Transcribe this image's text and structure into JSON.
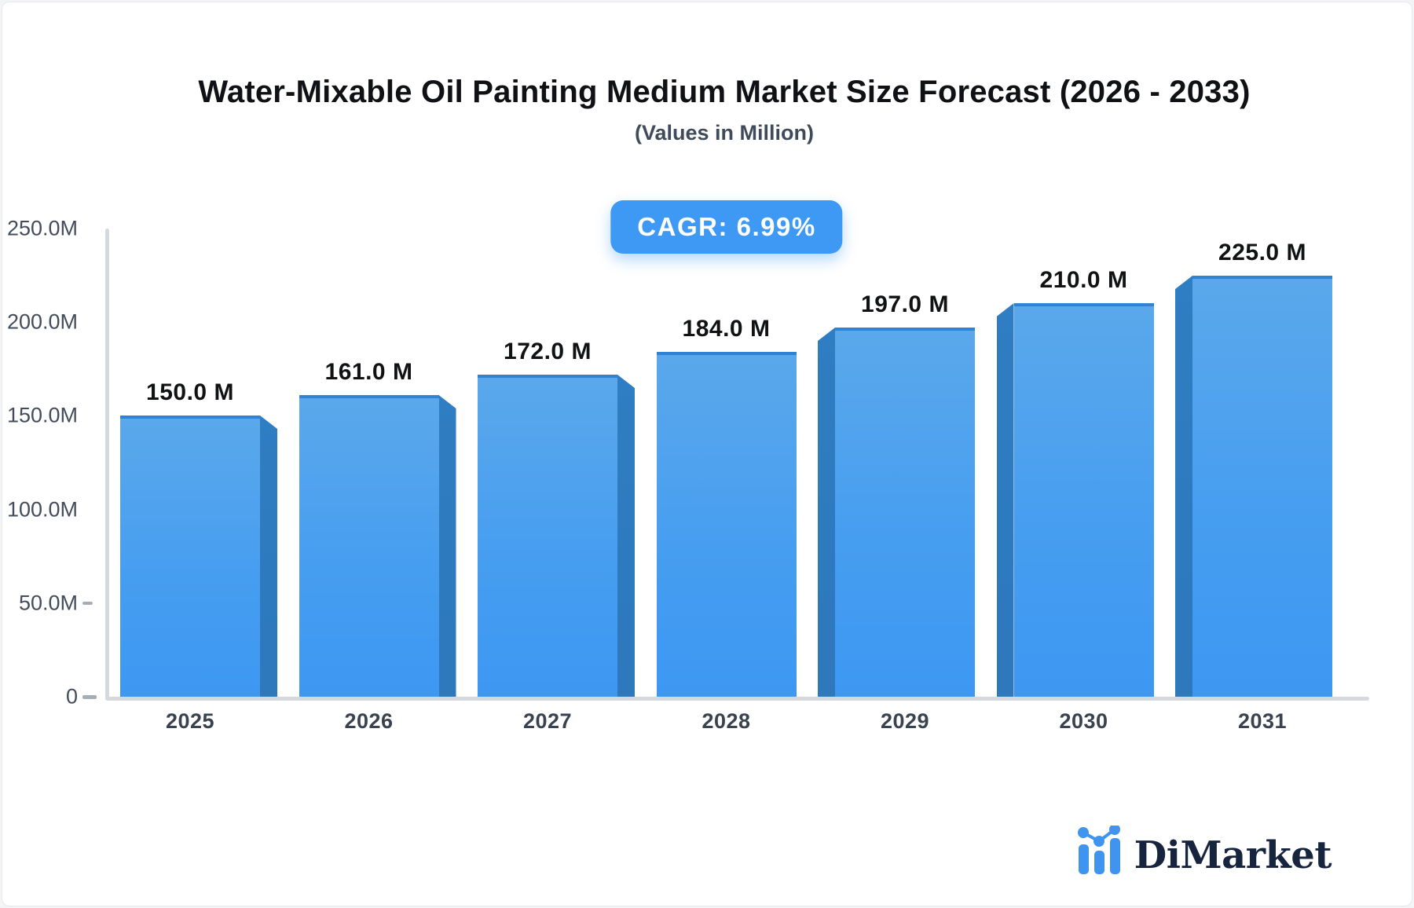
{
  "header": {
    "title": "Water-Mixable Oil Painting Medium Market Size Forecast (2026 - 2033)",
    "subtitle": "(Values in Million)",
    "cagr_label": "CAGR: 6.99%",
    "cagr_bg": "#3d99f3"
  },
  "chart_data": {
    "type": "bar",
    "categories": [
      "2025",
      "2026",
      "2027",
      "2028",
      "2029",
      "2030",
      "2031"
    ],
    "values": [
      150,
      161,
      172,
      184,
      197,
      210,
      225
    ],
    "value_labels": [
      "150.0 M",
      "161.0 M",
      "172.0 M",
      "184.0 M",
      "197.0 M",
      "210.0 M",
      "225.0 M"
    ],
    "y_ticks": [
      {
        "label": "250.0M",
        "value": 250
      },
      {
        "label": "200.0M",
        "value": 200
      },
      {
        "label": "150.0M",
        "value": 150
      },
      {
        "label": "100.0M",
        "value": 100
      },
      {
        "label": "50.0M",
        "value": 50
      },
      {
        "label": "0",
        "value": 0
      }
    ],
    "ylim": [
      0,
      250
    ],
    "xlabel": "",
    "ylabel": "",
    "grid": false,
    "legend": "none",
    "colors": {
      "bar_top": "#5aa8eb",
      "bar_bottom": "#3d98f2",
      "bar_side": "#2e78bc",
      "bar_top_edge": "#3083d2",
      "axis_line": "#d5d8dc"
    }
  },
  "footer": {
    "brand": "DiMarket",
    "brand_color": "#16243d",
    "icon": "bar-chart-logo-icon",
    "icon_color": "#3f94f0"
  }
}
